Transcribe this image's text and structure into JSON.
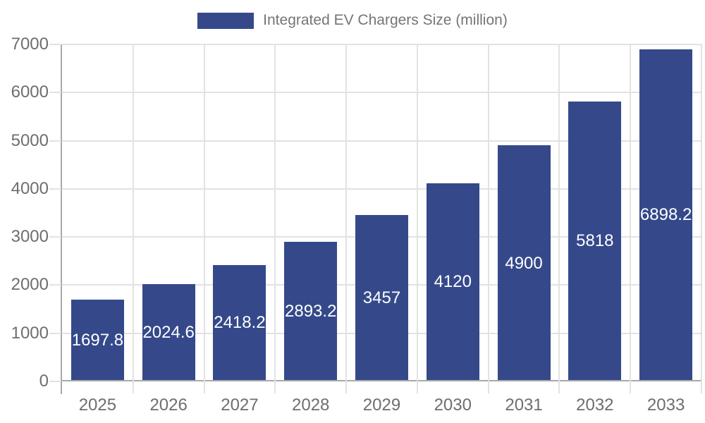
{
  "legend": {
    "label": "Integrated EV Chargers Size (million)",
    "swatch_color": "#35498A"
  },
  "chart_data": {
    "type": "bar",
    "title": "",
    "categories": [
      "2025",
      "2026",
      "2027",
      "2028",
      "2029",
      "2030",
      "2031",
      "2032",
      "2033"
    ],
    "values": [
      1697.8,
      2024.6,
      2418.2,
      2893.2,
      3457,
      4120,
      4900,
      5818,
      6898.2
    ],
    "series_name": "Integrated EV Chargers Size (million)",
    "xlabel": "",
    "ylabel": "",
    "ylim": [
      0,
      7000
    ],
    "yticks": [
      0,
      1000,
      2000,
      3000,
      4000,
      5000,
      6000,
      7000
    ],
    "grid": true,
    "legend_position": "top",
    "bar_color": "#35498A",
    "value_label_color": "#ffffff",
    "gridline_color": "#e2e2e2",
    "axis_color": "#a8a8a8",
    "tick_label_color": "#6e6e6e"
  }
}
